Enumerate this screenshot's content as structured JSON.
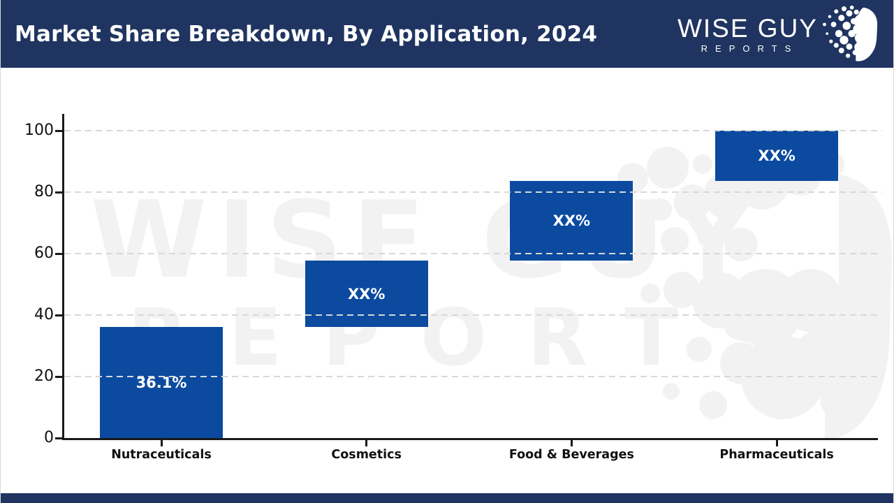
{
  "header": {
    "title": "Market Share Breakdown, By Application, 2024",
    "logo": {
      "line1": "WISE GUY",
      "line2": "REPORTS"
    }
  },
  "watermark": {
    "line1": "WISE GUY",
    "line2": "REPORTS"
  },
  "colors": {
    "header_bg": "#1f3460",
    "footer_bg": "#1f3460",
    "bar": "#0b4a9f",
    "grid": "#d8d8d8",
    "axis": "#1a1a1a",
    "watermark": "#f2f2f2",
    "title_text": "#ffffff",
    "bar_label_text": "#ffffff"
  },
  "chart_data": {
    "type": "bar",
    "subtype": "waterfall",
    "title": "Market Share Breakdown, By Application, 2024",
    "categories": [
      "Nutraceuticals",
      "Cosmetics",
      "Food & Beverages",
      "Pharmaceuticals"
    ],
    "segments": [
      {
        "category": "Nutraceuticals",
        "start": 0,
        "end": 36.1,
        "label": "36.1%"
      },
      {
        "category": "Cosmetics",
        "start": 36.1,
        "end": 57.7,
        "label": "XX%"
      },
      {
        "category": "Food & Beverages",
        "start": 57.7,
        "end": 83.6,
        "label": "XX%"
      },
      {
        "category": "Pharmaceuticals",
        "start": 83.6,
        "end": 100,
        "label": "XX%"
      }
    ],
    "ylabel": "",
    "xlabel": "",
    "yticks": [
      0,
      20,
      40,
      60,
      80,
      100
    ],
    "ylim": [
      0,
      105
    ],
    "grid": "horizontal-dashed",
    "legend": "none",
    "bar_color": "#0b4a9f"
  }
}
